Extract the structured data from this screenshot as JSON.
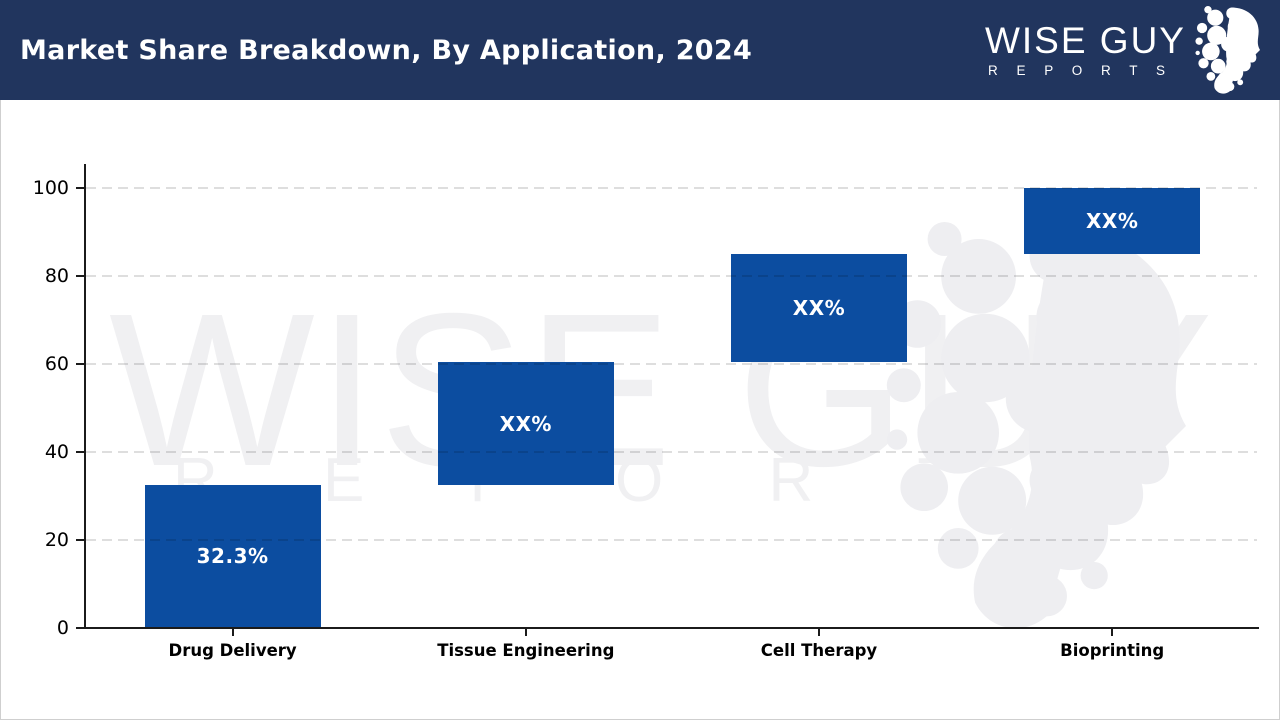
{
  "header": {
    "title": "Market Share Breakdown, By Application, 2024",
    "brand": {
      "name": "WISE GUY",
      "sub": "R E P O R T S"
    }
  },
  "watermark": {
    "line1": "WISE GUY",
    "line2": "R E P O R T S"
  },
  "colors": {
    "header_bg": "#21355e",
    "bar": "#0c4da0",
    "axis": "#1b1b1b",
    "grid": "#dcdcdc",
    "watermark": "#f0f0f2",
    "bar_label": "#ffffff",
    "title_text": "#ffffff"
  },
  "chart_data": {
    "type": "bar",
    "subtype": "waterfall",
    "title": "Market Share Breakdown, By Application, 2024",
    "categories": [
      "Drug Delivery",
      "Tissue Engineering",
      "Cell Therapy",
      "Bioprinting"
    ],
    "segments": [
      {
        "category": "Drug Delivery",
        "start": 0,
        "end": 32.3,
        "label": "32.3%"
      },
      {
        "category": "Tissue Engineering",
        "start": 32.3,
        "end": 60.3,
        "label": "XX%"
      },
      {
        "category": "Cell Therapy",
        "start": 60.3,
        "end": 84.8,
        "label": "XX%"
      },
      {
        "category": "Bioprinting",
        "start": 84.8,
        "end": 100,
        "label": "XX%"
      }
    ],
    "xlabel": "",
    "ylabel": "",
    "ylim": [
      0,
      100
    ],
    "yticks": [
      0,
      20,
      40,
      60,
      80,
      100
    ],
    "grid": "horizontal-dashed",
    "legend": "none"
  }
}
